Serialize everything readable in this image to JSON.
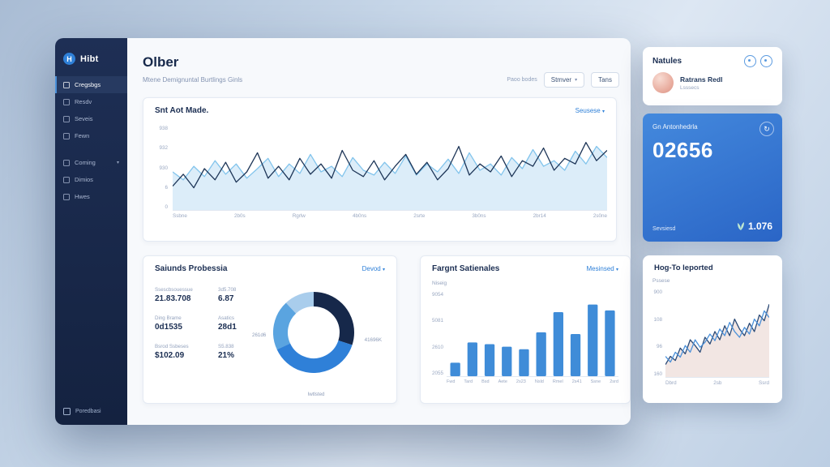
{
  "sidebar": {
    "brand": "Hibt",
    "items": [
      {
        "label": "Cregsbgs",
        "active": true
      },
      {
        "label": "Resdv"
      },
      {
        "label": "Seveis"
      },
      {
        "label": "Fewn"
      },
      {
        "label": "Coming",
        "chevron": true,
        "gap": true
      },
      {
        "label": "Dimios"
      },
      {
        "label": "Hwes"
      }
    ],
    "footer_label": "Poredbasi"
  },
  "header": {
    "title": "Olber",
    "subtitle": "Mtene Demignuntal Burtlings Ginls",
    "note": "Paoo bodes",
    "dropdown_label": "Stmver",
    "button_label": "Tans"
  },
  "main_chart_card": {
    "title": "Snt Aot Made.",
    "link_label": "Seusese"
  },
  "stats_card": {
    "title": "Saiunds Probessia",
    "link_label": "Devod",
    "columns": [
      [
        {
          "label": "Ssescbsouessue",
          "value": "21.83.708"
        },
        {
          "label": "Ding Brame",
          "value": "0d1535"
        },
        {
          "label": "Bsrod Ssbeses",
          "value": "$102.09"
        }
      ],
      [
        {
          "label": "3d5.708",
          "value": "6.87"
        },
        {
          "label": "Asatics",
          "value": "28d1"
        },
        {
          "label": "S5.838",
          "value": "21%"
        }
      ]
    ],
    "donut_labels": {
      "left": "261d6",
      "right": "41696K",
      "bottom": "Iwtlsted"
    }
  },
  "bars_card": {
    "title": "Fargnt Satienales",
    "link_label": "Mesinsed",
    "subtitle": "Niseig"
  },
  "right_column": {
    "notifications": {
      "title": "Natules",
      "user_name": "Ratrans Redl",
      "user_sub": "Lsssecs"
    },
    "metric": {
      "title": "Gn Antonhedrla",
      "value": "02656",
      "footer_label": "Sevsiesd",
      "footer_value": "1.076"
    },
    "area_card": {
      "title": "Hog-To leported",
      "subtitle": "Pssese"
    }
  },
  "chart_data": [
    {
      "id": "main-line",
      "type": "line",
      "title": "Snt Aot Made.",
      "x_ticks": [
        "Ssbne",
        "2b0s",
        "Rgrlw",
        "4b0ns",
        "2srte",
        "3b0ns",
        "2br14",
        "2s0ne"
      ],
      "y_ticks": [
        "938",
        "932",
        "930",
        "6",
        "0"
      ],
      "legend_position": "none",
      "grid": false,
      "series": [
        {
          "name": "secondary",
          "color": "#82c4ec",
          "fill": "#dcedf9",
          "values": [
            48,
            38,
            55,
            42,
            62,
            45,
            58,
            40,
            52,
            65,
            42,
            58,
            46,
            70,
            48,
            55,
            42,
            66,
            50,
            44,
            60,
            46,
            68,
            44,
            58,
            48,
            64,
            46,
            72,
            50,
            58,
            44,
            66,
            52,
            76,
            55,
            62,
            50,
            74,
            58,
            80,
            66
          ]
        },
        {
          "name": "primary",
          "color": "#1d3557",
          "values": [
            30,
            45,
            28,
            52,
            38,
            60,
            35,
            48,
            72,
            40,
            55,
            38,
            65,
            45,
            58,
            40,
            75,
            50,
            42,
            62,
            38,
            55,
            70,
            45,
            60,
            38,
            52,
            80,
            44,
            58,
            48,
            68,
            42,
            62,
            55,
            78,
            50,
            65,
            58,
            85,
            62,
            75
          ]
        }
      ]
    },
    {
      "id": "donut",
      "type": "pie",
      "title": "Saiunds Probessia",
      "labels": [
        "261d6",
        "41696K",
        "Iwtlsted"
      ],
      "segments": [
        {
          "name": "segment-dark",
          "value": 30,
          "color": "#16284a"
        },
        {
          "name": "segment-blue",
          "value": 38,
          "color": "#2f80d8"
        },
        {
          "name": "segment-mid",
          "value": 20,
          "color": "#5aa4e0"
        },
        {
          "name": "segment-pale",
          "value": 12,
          "color": "#a9cdec"
        }
      ]
    },
    {
      "id": "bars",
      "type": "bar",
      "title": "Fargnt Satienales",
      "color": "#3f8cd8",
      "y_ticks": [
        "9054",
        "5081",
        "2610",
        "2055"
      ],
      "categories": [
        "Fwd",
        "Tard",
        "Bsd",
        "Aete",
        "2s23",
        "Nsld",
        "Rmel",
        "2s41",
        "Ssne",
        "2srd"
      ],
      "values": [
        16,
        40,
        38,
        35,
        32,
        52,
        76,
        50,
        85,
        78
      ],
      "grid": false
    },
    {
      "id": "area",
      "type": "area",
      "title": "Hog-To leported",
      "y_ticks": [
        "900",
        "108",
        "96",
        "160"
      ],
      "x_ticks": [
        "Dbrd",
        "2sb",
        "Ssrd"
      ],
      "grid": false,
      "series": [
        {
          "name": "primary",
          "color": "#2a4a77",
          "fill": "#f2e6e3",
          "values": [
            15,
            25,
            20,
            35,
            28,
            45,
            38,
            30,
            48,
            40,
            55,
            45,
            62,
            50,
            70,
            58,
            50,
            65,
            55,
            75,
            68,
            88
          ]
        },
        {
          "name": "secondary",
          "color": "#4a90d9",
          "values": [
            25,
            18,
            30,
            24,
            38,
            30,
            45,
            36,
            42,
            52,
            44,
            58,
            50,
            66,
            55,
            48,
            60,
            52,
            70,
            62,
            80,
            72
          ]
        }
      ]
    }
  ]
}
